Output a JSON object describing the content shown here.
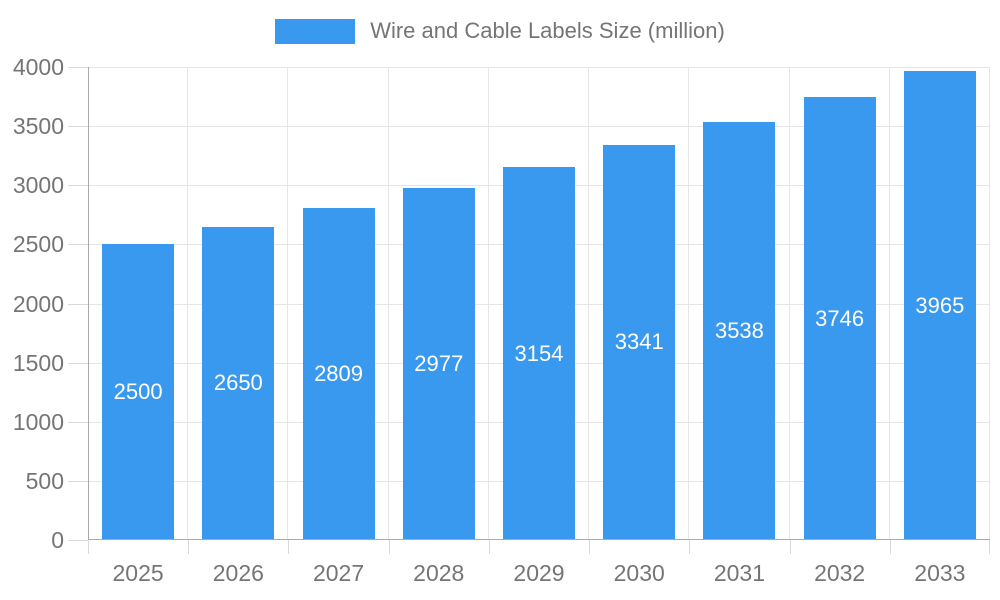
{
  "chart_data": {
    "type": "bar",
    "title": "Wire and Cable Labels Size (million)",
    "legend_entries": [
      "Wire and Cable Labels Size (million)"
    ],
    "legend_position": "top-center",
    "categories": [
      "2025",
      "2026",
      "2027",
      "2028",
      "2029",
      "2030",
      "2031",
      "2032",
      "2033"
    ],
    "series": [
      {
        "name": "Wire and Cable Labels Size (million)",
        "values": [
          2500,
          2650,
          2809,
          2977,
          3154,
          3341,
          3538,
          3746,
          3965
        ]
      }
    ],
    "value_labels": "inside-center-white",
    "xlabel": "",
    "ylabel": "",
    "ylim": [
      0,
      4000
    ],
    "ytick_step": 500,
    "ytick_labels": [
      "0",
      "500",
      "1000",
      "1500",
      "2000",
      "2500",
      "3000",
      "3500",
      "4000"
    ],
    "grid": true,
    "colors": {
      "bar": "#3999EE",
      "axis_text": "#757575",
      "value_label_text": "#FFFFFF",
      "gridline": "#E6E6E6",
      "axis_line": "#AAAAAA",
      "tick": "#D9D9D9",
      "background": "#FFFFFF"
    }
  },
  "legend": {
    "label": "Wire and Cable Labels Size (million)"
  }
}
